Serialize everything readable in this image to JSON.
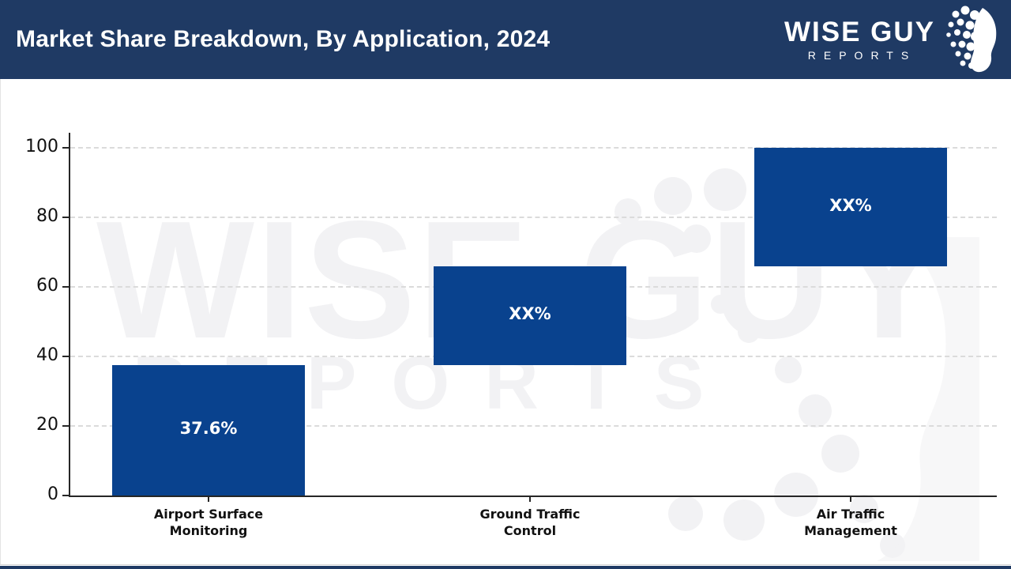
{
  "header": {
    "title": "Market Share Breakdown, By Application, 2024",
    "logo": {
      "wordmark": "WISE GUY",
      "subtext": "REPORTS"
    }
  },
  "watermark": {
    "line1": "WISE GUY",
    "line2": "REPORTS"
  },
  "chart_data": {
    "type": "bar",
    "variant": "floating-waterfall-segments",
    "title": "Market Share Breakdown, By Application, 2024",
    "categories": [
      "Airport Surface Monitoring",
      "Ground Traffic Control",
      "Air Traffic Management"
    ],
    "bars": [
      {
        "category": "Airport Surface Monitoring",
        "lines": [
          "Airport Surface",
          "Monitoring"
        ],
        "start": 0,
        "end": 37.6,
        "value": 37.6,
        "value_label": "37.6%"
      },
      {
        "category": "Ground Traffic Control",
        "lines": [
          "Ground Traffic",
          "Control"
        ],
        "start": 37.6,
        "end": 66,
        "value": 28.4,
        "value_label": "XX%"
      },
      {
        "category": "Air Traffic Management",
        "lines": [
          "Air Traffic",
          "Management"
        ],
        "start": 66,
        "end": 100,
        "value": 34,
        "value_label": "XX%"
      }
    ],
    "y_ticks": [
      0,
      20,
      40,
      60,
      80,
      100
    ],
    "ylim": [
      0,
      105
    ],
    "xlabel": "",
    "ylabel": "",
    "grid": "horizontal-dashed",
    "legend": "none",
    "bar_color": "#09428E",
    "value_label_color": "#FFFFFF",
    "axis_color": "#262626",
    "grid_color": "#DBDBDB"
  },
  "colors": {
    "header_bg": "#1F3A64",
    "footer_bg": "#1F3A64",
    "watermark": "#F2F2F4",
    "plot_bg": "#FFFFFF"
  }
}
